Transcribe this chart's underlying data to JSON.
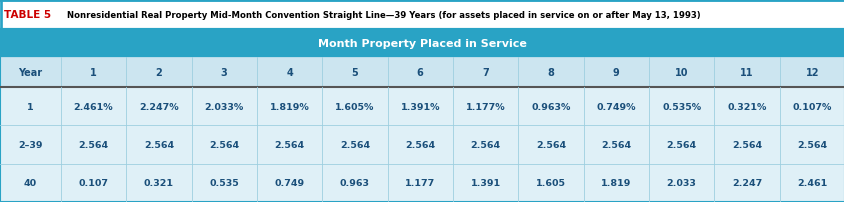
{
  "title_label": "TABLE 5",
  "title_text": "  Nonresidential Real Property Mid-Month Convention Straight Line—39 Years (for assets placed in service on or after May 13, 1993)",
  "subheader": "Month Property Placed in Service",
  "col_headers": [
    "Year",
    "1",
    "2",
    "3",
    "4",
    "5",
    "6",
    "7",
    "8",
    "9",
    "10",
    "11",
    "12"
  ],
  "rows": [
    [
      "1",
      "2.461%",
      "2.247%",
      "2.033%",
      "1.819%",
      "1.605%",
      "1.391%",
      "1.177%",
      "0.963%",
      "0.749%",
      "0.535%",
      "0.321%",
      "0.107%"
    ],
    [
      "2–39",
      "2.564",
      "2.564",
      "2.564",
      "2.564",
      "2.564",
      "2.564",
      "2.564",
      "2.564",
      "2.564",
      "2.564",
      "2.564",
      "2.564"
    ],
    [
      "40",
      "0.107",
      "0.321",
      "0.535",
      "0.749",
      "0.963",
      "1.177",
      "1.391",
      "1.605",
      "1.819",
      "2.033",
      "2.247",
      "2.461"
    ]
  ],
  "title_bg": "#ffffff",
  "title_label_color": "#cc0000",
  "title_text_color": "#000000",
  "subheader_bg": "#29a3c5",
  "subheader_text_color": "#ffffff",
  "col_header_bg": "#cce5f0",
  "col_header_text_color": "#1a4f7a",
  "data_row_bg": "#dff0f7",
  "row_text_color": "#1a4f7a",
  "border_color": "#29a3c5",
  "grid_color": "#9ecfe0",
  "separator_color": "#555555",
  "title_top_border": "#29a3c5",
  "title_bottom_border": "#29a3c5",
  "fig_width": 8.45,
  "fig_height": 2.03,
  "dpi": 100
}
